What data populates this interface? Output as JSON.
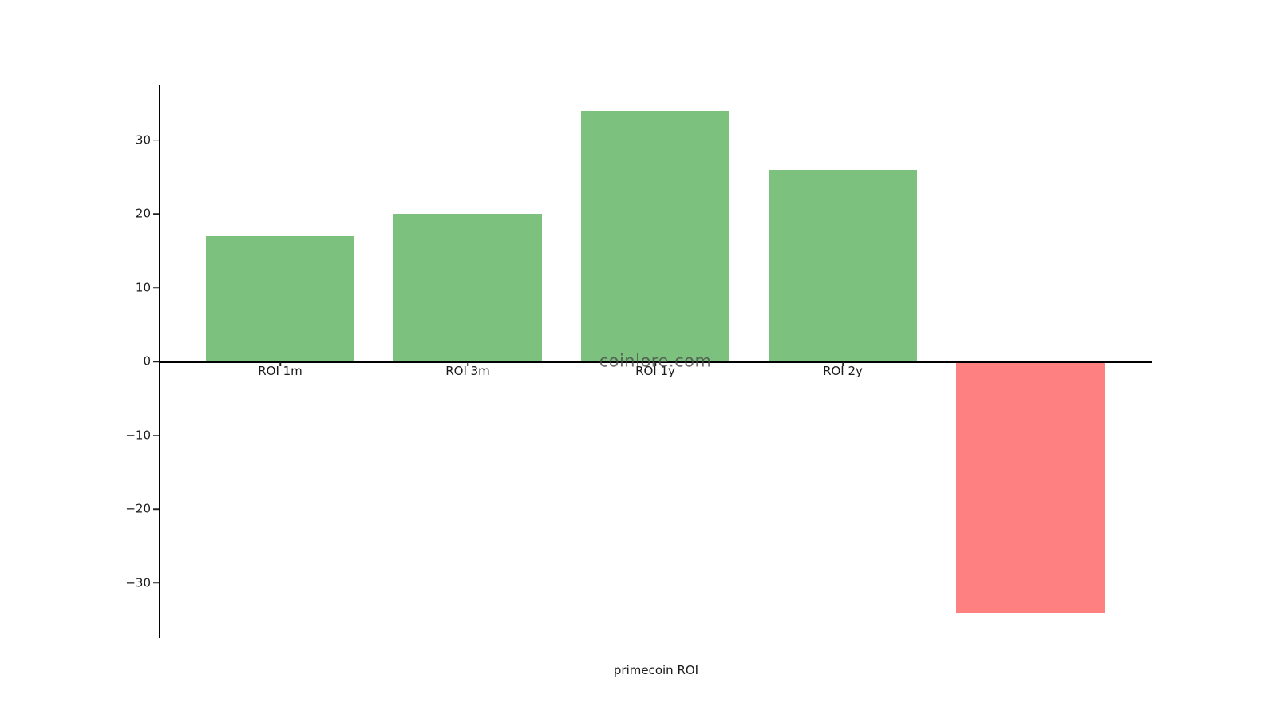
{
  "watermark": {
    "text": "coinlore.com",
    "color": "#4d4d4d"
  },
  "chart_data": {
    "type": "bar",
    "title": "",
    "xlabel": "primecoin ROI",
    "ylabel": "",
    "categories": [
      "ROI 1m",
      "ROI 3m",
      "ROI 1y",
      "ROI 2y",
      ""
    ],
    "values": [
      17,
      20,
      34,
      26,
      -34
    ],
    "bar_colors": [
      "#7cc17e",
      "#7cc17e",
      "#7cc17e",
      "#7cc17e",
      "#ff8080"
    ],
    "positive_color": "#7cc17e",
    "negative_color": "#ff8080",
    "yticks": [
      30,
      20,
      10,
      0,
      -10,
      -20,
      -30
    ],
    "ytick_labels": [
      "30",
      "20",
      "10",
      "0",
      "−10",
      "−20",
      "−30"
    ],
    "ylim": [
      -37.5,
      37.5
    ],
    "grid": false,
    "legend": false,
    "axis_color": "#000000",
    "tick_label_color": "#1a1a1a",
    "background": "#ffffff"
  }
}
